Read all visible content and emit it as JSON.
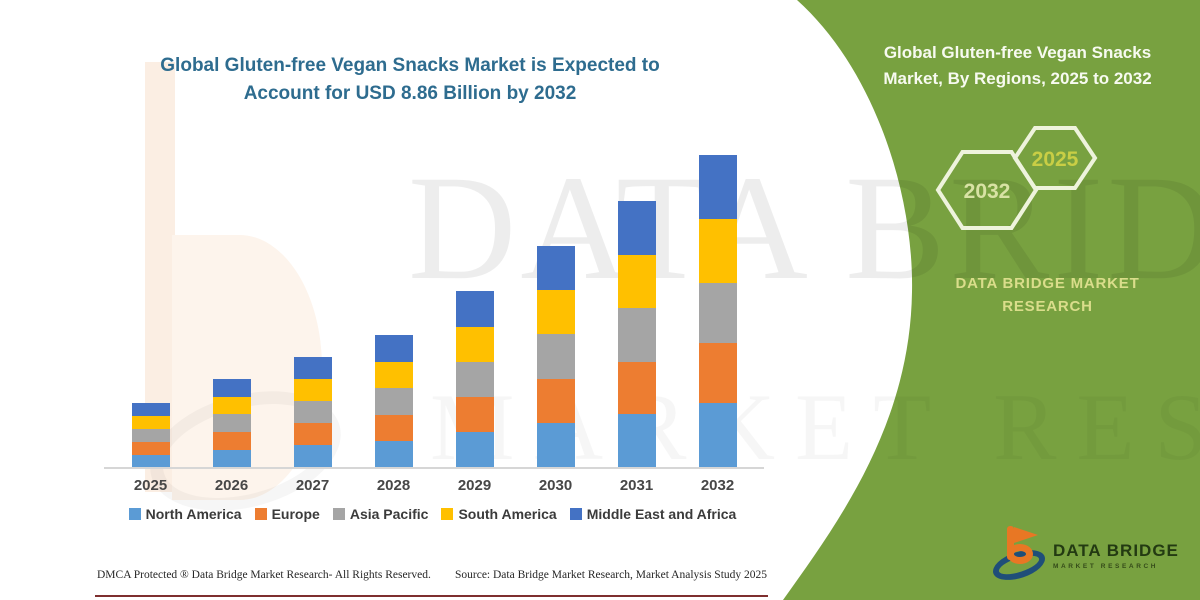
{
  "title": {
    "line1": "Global Gluten-free Vegan Snacks Market is Expected to",
    "line2": "Account for USD 8.86 Billion by 2032"
  },
  "chart_data": {
    "type": "bar",
    "stacked": true,
    "title": "Global Gluten-free Vegan Snacks Market is Expected to Account for USD 8.86 Billion by 2032",
    "unit": "USD Billion",
    "categories": [
      "2025",
      "2026",
      "2027",
      "2028",
      "2029",
      "2030",
      "2031",
      "2032"
    ],
    "series": [
      {
        "name": "North America",
        "color": "#5B9BD5",
        "values": [
          0.38,
          0.52,
          0.64,
          0.76,
          1.02,
          1.27,
          1.53,
          1.84
        ]
      },
      {
        "name": "Europe",
        "color": "#ED7D31",
        "values": [
          0.37,
          0.5,
          0.63,
          0.75,
          1.0,
          1.26,
          1.48,
          1.7
        ]
      },
      {
        "name": "Asia Pacific",
        "color": "#A5A5A5",
        "values": [
          0.36,
          0.5,
          0.62,
          0.75,
          0.97,
          1.26,
          1.53,
          1.7
        ]
      },
      {
        "name": "South America",
        "color": "#FFC000",
        "values": [
          0.36,
          0.5,
          0.62,
          0.75,
          1.0,
          1.25,
          1.48,
          1.81
        ]
      },
      {
        "name": "Middle East and Africa",
        "color": "#4472C4",
        "values": [
          0.37,
          0.5,
          0.63,
          0.75,
          1.02,
          1.24,
          1.53,
          1.81
        ]
      }
    ],
    "totals": [
      1.84,
      2.52,
      3.14,
      3.76,
      5.01,
      6.28,
      7.55,
      8.86
    ],
    "ylim": [
      0,
      9.3
    ],
    "grid": false,
    "y_axis_visible": false,
    "legend_position": "bottom"
  },
  "right_panel": {
    "title_line1": "Global Gluten-free Vegan Snacks",
    "title_line2": "Market, By Regions, 2025 to 2032",
    "hexagons": [
      {
        "label": "2032"
      },
      {
        "label": "2025"
      }
    ],
    "brand_line1": "DATA BRIDGE MARKET",
    "brand_line2": "RESEARCH"
  },
  "watermark": {
    "text_main": "DATA BRIDGE",
    "text_sub": "MARKET RESEARCH"
  },
  "logo": {
    "name": "DATA BRIDGE",
    "subtitle": "MARKET RESEARCH"
  },
  "footer": {
    "left": "DMCA Protected ® Data Bridge Market Research-  All Rights Reserved.",
    "source": "Source: Data Bridge Market Research, Market Analysis Study 2025"
  },
  "colors": {
    "panel_green": "#78A140",
    "title_blue": "#2E6C8F",
    "hex_stroke": "#EEF3DC",
    "hex_label_2032": "#D8E2A4",
    "hex_label_2025": "#C9CE45",
    "brand_khaki": "#DADD8B",
    "footer_rule": "#7E2F2F",
    "logo_orange": "#E87724",
    "logo_navy": "#1F4E79"
  }
}
